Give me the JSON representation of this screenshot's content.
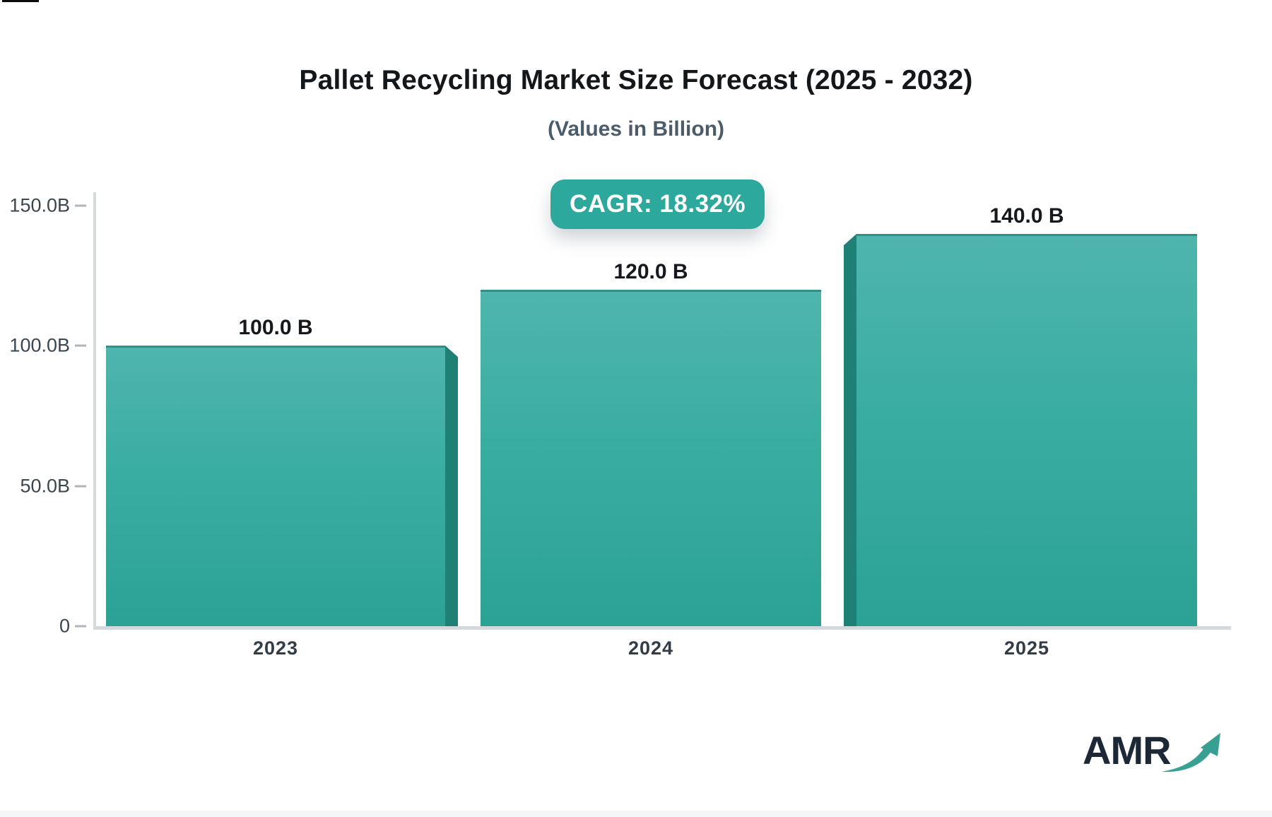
{
  "header": {
    "title": "Pallet Recycling Market Size Forecast (2025 - 2032)",
    "subtitle": "(Values in Billion)",
    "cagr_badge": "CAGR: 18.32%"
  },
  "chart_data": {
    "type": "bar",
    "title": "Pallet Recycling Market Size Forecast (2025 - 2032)",
    "subtitle": "(Values in Billion)",
    "unit": "Billion",
    "categories": [
      "2023",
      "2024",
      "2025"
    ],
    "values": [
      100.0,
      120.0,
      140.0
    ],
    "value_labels": [
      "100.0 B",
      "120.0 B",
      "140.0 B"
    ],
    "y_ticks": [
      "150.0B",
      "100.0B",
      "50.0B",
      "0"
    ],
    "y_tick_values": [
      150,
      100,
      50,
      0
    ],
    "ylim": [
      0,
      150
    ],
    "cagr": "18.32%",
    "grid": false,
    "legend": "none",
    "colors": {
      "bar_gradient_top": "#4fb5ad",
      "bar_gradient_bottom": "#2ba294",
      "bar_side_shadow": "#1f8076",
      "bar_top_border": "#2f9087",
      "badge_background": "#2ca89c",
      "badge_text": "#ffffff",
      "axis_line": "#d5d9dc",
      "tick_text": "#3c4650",
      "category_text": "#313c46",
      "value_text": "#15181c",
      "title_text": "#14171a",
      "subtitle_text": "#4b5b6a"
    }
  },
  "logo": {
    "text": "AMR",
    "arrow_icon": "growth-arrow-icon",
    "text_color": "#1d2836",
    "arrow_color": "#38a093"
  }
}
